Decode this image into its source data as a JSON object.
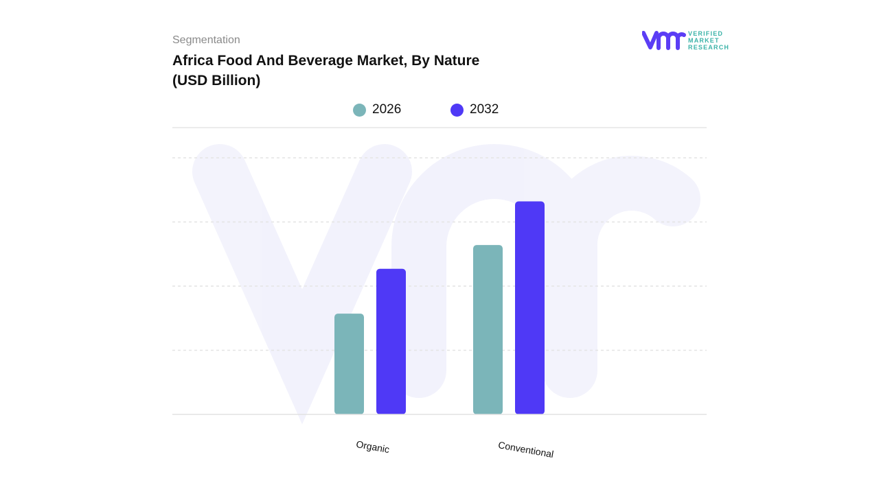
{
  "header": {
    "eyebrow": "Segmentation",
    "title_line1": "Africa Food And Beverage Market, By Nature",
    "title_line2": "(USD Billion)"
  },
  "logo": {
    "mark": "vmr",
    "line1": "VERIFIED",
    "line2": "MARKET",
    "line3": "RESEARCH",
    "color_mark": "#5b3df5",
    "color_text": "#3bb3a8"
  },
  "chart_data": {
    "type": "bar",
    "title": "Africa Food And Beverage Market, By Nature (USD Billion)",
    "categories": [
      "Organic",
      "Conventional"
    ],
    "series": [
      {
        "name": "2026",
        "color": "#7bb5b9",
        "values": [
          1.57,
          2.64
        ]
      },
      {
        "name": "2032",
        "color": "#4f39f6",
        "values": [
          2.27,
          3.32
        ]
      }
    ],
    "ylim": [
      0,
      4.47
    ],
    "grid": true,
    "y_tick_labels_shown": false,
    "legend_position": "top-center",
    "xlabel": "",
    "ylabel": ""
  }
}
